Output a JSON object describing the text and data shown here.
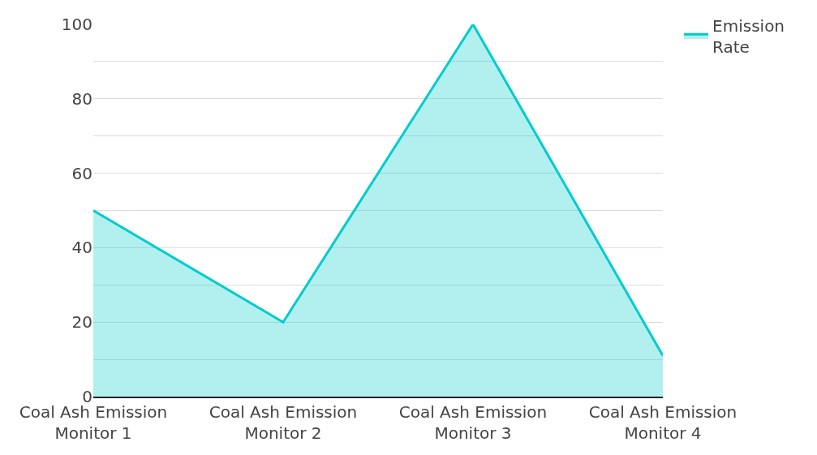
{
  "chart_data": {
    "type": "area",
    "categories": [
      "Coal Ash Emission Monitor 1",
      "Coal Ash Emission Monitor 2",
      "Coal Ash Emission Monitor 3",
      "Coal Ash Emission Monitor 4"
    ],
    "series": [
      {
        "name": "Emission Rate",
        "color": "#00cccc",
        "values": [
          50,
          20,
          100,
          11
        ]
      }
    ],
    "ylim": [
      0,
      100
    ],
    "yticks": [
      0,
      {
        "value": 10,
        "label": null
      },
      20,
      {
        "value": 30,
        "label": null
      },
      40,
      {
        "value": 50,
        "label": null
      },
      60,
      {
        "value": 70,
        "label": null
      },
      80,
      {
        "value": 90,
        "label": null
      },
      100
    ],
    "grid": "y",
    "legend": "top right"
  }
}
